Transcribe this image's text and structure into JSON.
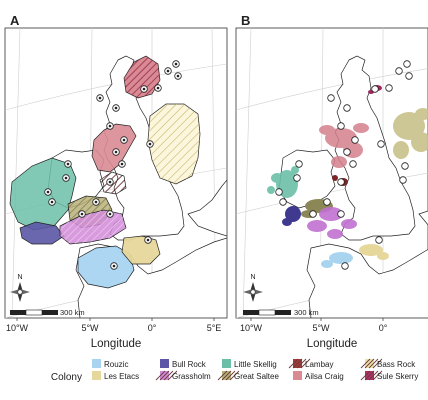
{
  "panels": [
    {
      "letter": "A",
      "x_ticks": [
        "10°W",
        "5°W",
        "0°",
        "5°E"
      ]
    },
    {
      "letter": "B",
      "x_ticks": [
        "10°W",
        "5°W",
        "0°"
      ]
    }
  ],
  "x_axis_label": "Longitude",
  "north_label": "N",
  "scalebar_label": "300 km",
  "legend": {
    "title": "Colony",
    "items": [
      {
        "name": "Rouzic",
        "color": "#a8d4f0",
        "hatch": false
      },
      {
        "name": "Les Etacs",
        "color": "#e6d79a",
        "hatch": false
      },
      {
        "name": "Bull Rock",
        "color": "#5b57a6",
        "hatch": false
      },
      {
        "name": "Grassholm",
        "color": "#d08ad8",
        "hatch": true
      },
      {
        "name": "Little Skellig",
        "color": "#6bbfa8",
        "hatch": false
      },
      {
        "name": "Great Saltee",
        "color": "#b8b27a",
        "hatch": true
      },
      {
        "name": "Lambay",
        "color": "#a33a3a",
        "hatch": true
      },
      {
        "name": "Ailsa Craig",
        "color": "#d98a93",
        "hatch": false
      },
      {
        "name": "Bass Rock",
        "color": "#ece2a8",
        "hatch": true
      },
      {
        "name": "Sule Skerry",
        "color": "#b0306a",
        "hatch": true
      }
    ]
  }
}
